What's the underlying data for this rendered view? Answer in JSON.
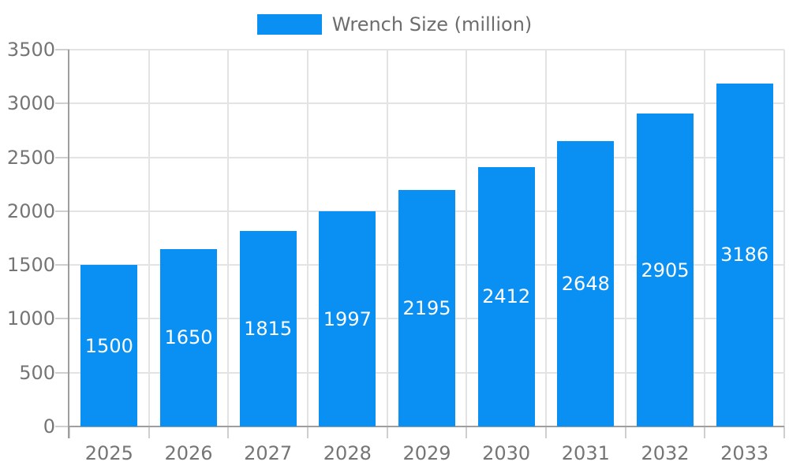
{
  "chart_data": {
    "type": "bar",
    "title": "",
    "categories": [
      "2025",
      "2026",
      "2027",
      "2028",
      "2029",
      "2030",
      "2031",
      "2032",
      "2033"
    ],
    "series": [
      {
        "name": "Wrench Size (million)",
        "values": [
          1500,
          1650,
          1815,
          1997,
          2195,
          2412,
          2648,
          2905,
          3186
        ]
      }
    ],
    "xlabel": "",
    "ylabel": "",
    "ylim": [
      0,
      3500
    ],
    "y_tick_step": 500,
    "y_tick_labels": [
      "0",
      "500",
      "1000",
      "1500",
      "2000",
      "2500",
      "3000",
      "3500"
    ],
    "grid": true,
    "legend_position": "top-center",
    "bar_value_labels": "white text centered inside bars",
    "colors": {
      "bar": "#0a8ff2",
      "bar_label": "#ffffff",
      "axis_text": "#757575",
      "legend_text": "#6d6d6d",
      "gridline": "#e3e3e3",
      "axis_line": "#9e9e9e",
      "tick": "#cfcfcf",
      "background": "#ffffff"
    }
  }
}
